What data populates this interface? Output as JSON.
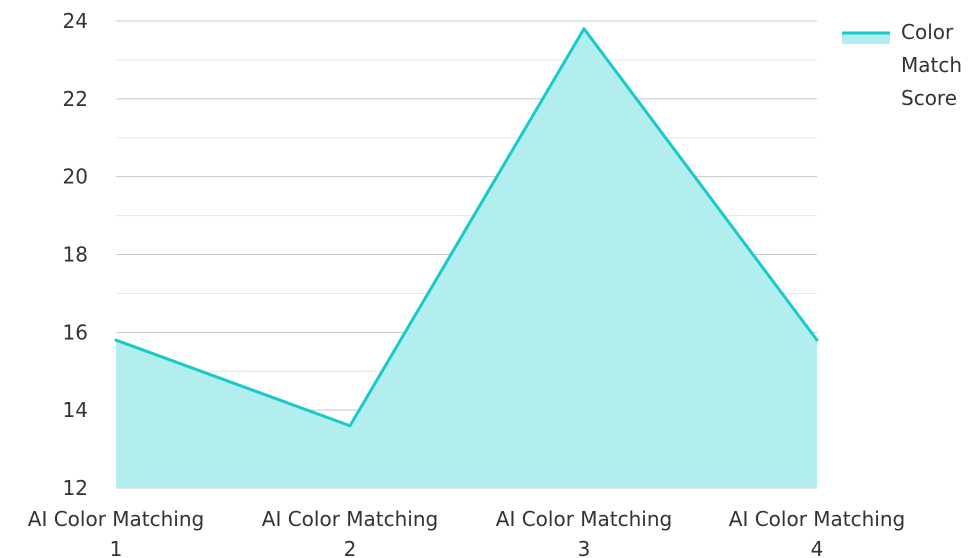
{
  "chart_data": {
    "type": "area",
    "categories": [
      [
        "AI Color Matching",
        "1"
      ],
      [
        "AI Color Matching",
        "2"
      ],
      [
        "AI Color Matching",
        "3"
      ],
      [
        "AI Color Matching",
        "4"
      ]
    ],
    "series": [
      {
        "name": [
          "Color",
          "Match",
          "Score"
        ],
        "values": [
          15.8,
          13.6,
          23.8,
          15.8
        ],
        "color": "#1ac9c9",
        "fill": "#b2eeee"
      }
    ],
    "ylim": [
      12,
      24
    ],
    "yticks": [
      12,
      14,
      16,
      18,
      20,
      22,
      24
    ],
    "y_minor_step": 1,
    "grid": true,
    "legend": "top-right",
    "title": "",
    "xlabel": "",
    "ylabel": ""
  }
}
